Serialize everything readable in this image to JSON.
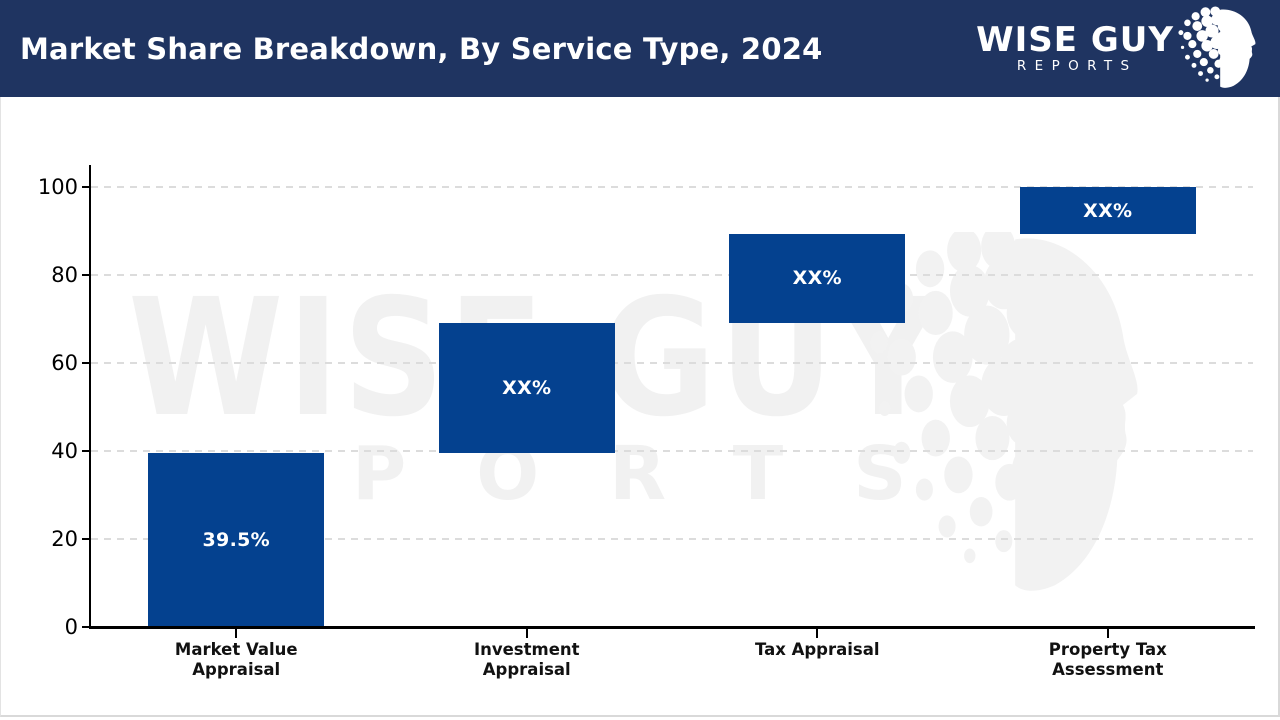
{
  "header": {
    "title": "Market Share Breakdown, By Service Type, 2024",
    "logo": {
      "line1": "WISE GUY",
      "line2": "REPORTS",
      "icon": "dotted-head-profile"
    }
  },
  "watermark": {
    "line1": "WISE GUY",
    "line2": "PORTS",
    "icon": "dotted-head-profile"
  },
  "colors": {
    "header_bg": "#1f3461",
    "bar": "#04418f",
    "grid": "#dcdcdc",
    "axis": "#000000",
    "watermark": "#f1f1f1",
    "bar_label": "#ffffff",
    "title_text": "#ffffff"
  },
  "chart_data": {
    "type": "bar",
    "subtype": "waterfall",
    "title": "Market Share Breakdown, By Service Type, 2024",
    "categories": [
      "Market Value Appraisal",
      "Investment Appraisal",
      "Tax Appraisal",
      "Property Tax Assessment"
    ],
    "category_lines": [
      [
        "Market Value",
        "Appraisal"
      ],
      [
        "Investment",
        "Appraisal"
      ],
      [
        "Tax Appraisal"
      ],
      [
        "Property Tax",
        "Assessment"
      ]
    ],
    "bars": [
      {
        "category": "Market Value Appraisal",
        "label": "39.5%",
        "start": 0,
        "end": 39.5
      },
      {
        "category": "Investment Appraisal",
        "label": "XX%",
        "start": 39.5,
        "end": 69.2
      },
      {
        "category": "Tax Appraisal",
        "label": "XX%",
        "start": 69.2,
        "end": 89.3
      },
      {
        "category": "Property Tax Assessment",
        "label": "XX%",
        "start": 89.3,
        "end": 100
      }
    ],
    "xlabel": "",
    "ylabel": "",
    "ylim": [
      0,
      100
    ],
    "yticks": [
      0,
      20,
      40,
      60,
      80,
      100
    ],
    "grid": true,
    "grid_style": "dashed",
    "legend": false
  }
}
